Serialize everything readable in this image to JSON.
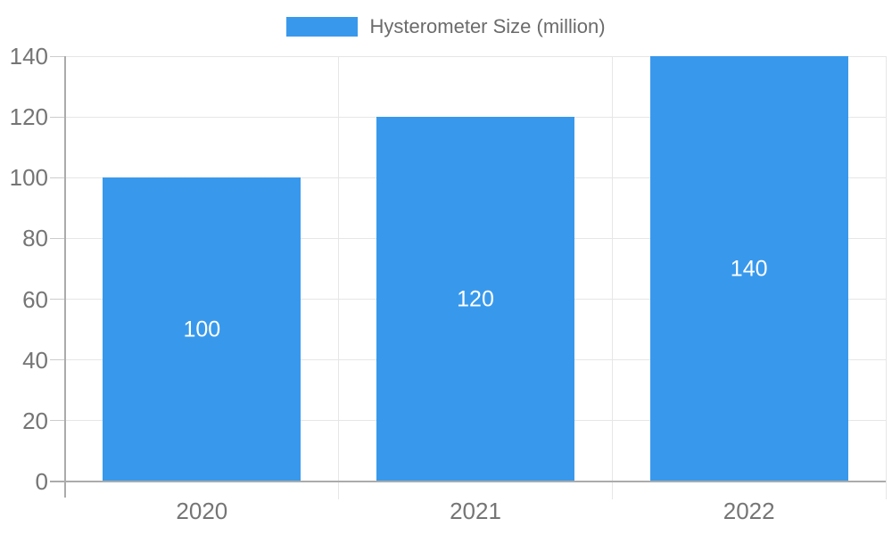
{
  "chart_data": {
    "type": "bar",
    "title": "",
    "xlabel": "",
    "ylabel": "",
    "categories": [
      "2020",
      "2021",
      "2022"
    ],
    "series": [
      {
        "name": "Hysterometer Size (million)",
        "values": [
          100,
          120,
          140
        ]
      }
    ],
    "data_labels": [
      "100",
      "120",
      "140"
    ],
    "yticks": [
      0,
      20,
      40,
      60,
      80,
      100,
      120,
      140
    ],
    "ylim": [
      0,
      140
    ],
    "legend_position": "top-center",
    "grid": "horizontal lines at each y tick, vertical lines at category boundaries, ticks extend outside axes",
    "colors": {
      "bar": "#3899EC",
      "axis_line": "#ababab",
      "gridline": "#e6e6e6",
      "tick": "#cccccc",
      "axis_text": "#757575",
      "legend_text": "#6b6b6b",
      "data_label_text": "#ffffff",
      "background": "#ffffff"
    }
  }
}
